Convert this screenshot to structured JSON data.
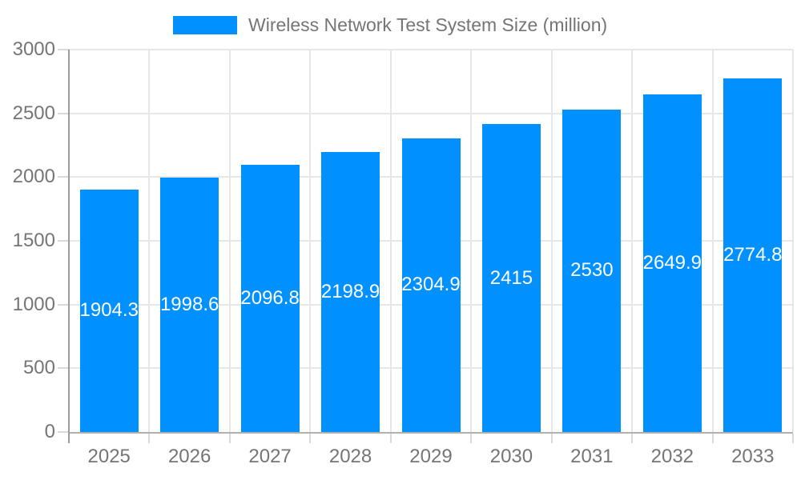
{
  "legend": {
    "label": "Wireless Network Test System Size (million)"
  },
  "colors": {
    "bar": "#0190FF",
    "grid": "#E7E7E7",
    "tick": "#D9D9D9",
    "axis": "#9B9B9B",
    "baseline": "#B0B0B0",
    "text": "#757575",
    "value_label": "#FFFFFF",
    "background": "#FFFFFF"
  },
  "chart_data": {
    "type": "bar",
    "title": "Wireless Network Test System Size (million)",
    "categories": [
      "2025",
      "2026",
      "2027",
      "2028",
      "2029",
      "2030",
      "2031",
      "2032",
      "2033"
    ],
    "values": [
      1904.3,
      1998.6,
      2096.8,
      2198.9,
      2304.9,
      2415,
      2530,
      2649.9,
      2774.8
    ],
    "value_labels": [
      "1904.3",
      "1998.6",
      "2096.8",
      "2198.9",
      "2304.9",
      "2415",
      "2530",
      "2649.9",
      "2774.8"
    ],
    "xlabel": "",
    "ylabel": "",
    "ylim": [
      0,
      3000
    ],
    "yticks": [
      0,
      500,
      1000,
      1500,
      2000,
      2500,
      3000
    ],
    "ytick_labels": [
      "0",
      "500",
      "1000",
      "1500",
      "2000",
      "2500",
      "3000"
    ],
    "grid": true,
    "legend_position": "top"
  }
}
